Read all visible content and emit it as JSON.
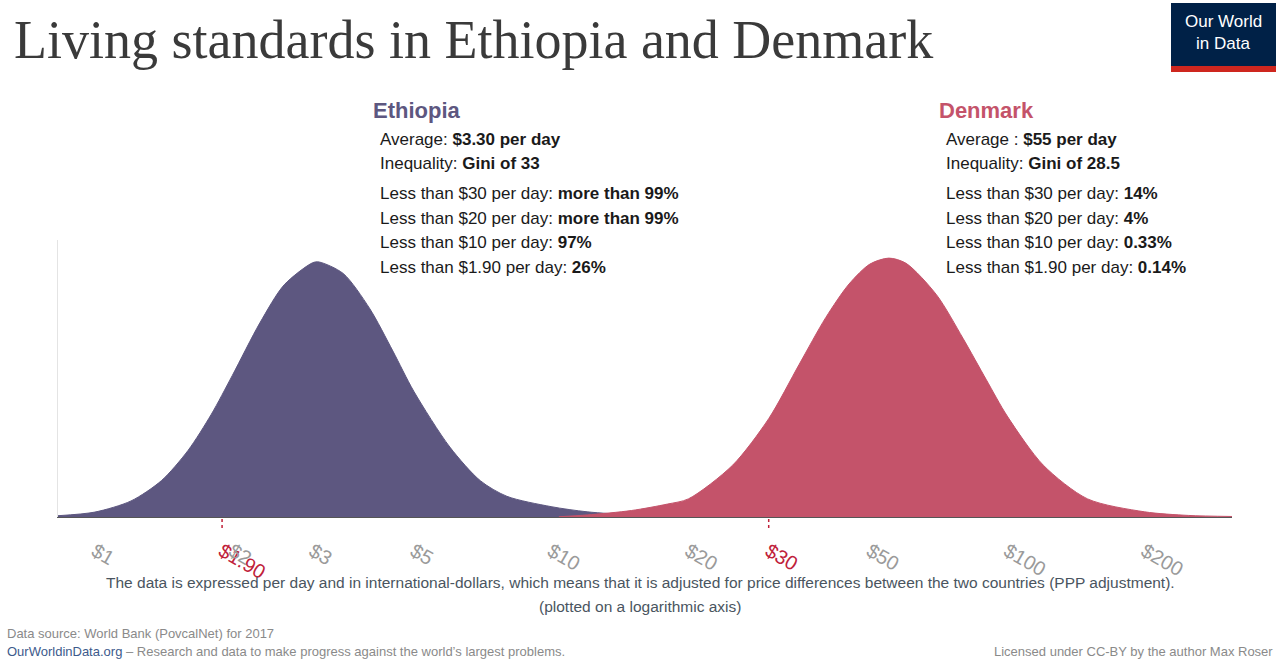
{
  "chart_data": {
    "type": "area",
    "title": "Living standards in Ethiopia and Denmark",
    "logo": [
      "Our World",
      "in Data"
    ],
    "log": "x",
    "grid": false,
    "legend": "none",
    "tick_labels": "x",
    "xlim": [
      0.83,
      311
    ],
    "xticks": [
      {
        "value": 1,
        "label": "$1"
      },
      {
        "value": 1.9,
        "label": "$1.90",
        "color": "#c0213a"
      },
      {
        "value": 2,
        "label": "$2"
      },
      {
        "value": 3,
        "label": "$3"
      },
      {
        "value": 5,
        "label": "$5"
      },
      {
        "value": 10,
        "label": "$10"
      },
      {
        "value": 20,
        "label": "$20"
      },
      {
        "value": 30,
        "label": "$30",
        "color": "#c0213a"
      },
      {
        "value": 50,
        "label": "$50"
      },
      {
        "value": 100,
        "label": "$100"
      },
      {
        "value": 200,
        "label": "$200"
      }
    ],
    "ylim": [
      0,
      107
    ],
    "series": [
      {
        "name": "Ethiopia",
        "color": "#5d5780",
        "x": [
          0.83,
          1,
          1.2,
          1.4,
          1.6,
          1.8,
          2,
          2.3,
          2.6,
          3,
          3.1,
          3.5,
          4,
          4.5,
          5,
          6,
          7,
          8,
          10,
          12,
          15,
          18,
          21
        ],
        "values": [
          0.5,
          1.9,
          6.2,
          14.1,
          25.7,
          39.7,
          54.6,
          75,
          89.7,
          98.2,
          98.5,
          94.1,
          80.6,
          64.1,
          48.6,
          27,
          14,
          8,
          4,
          2,
          0.8,
          0.3,
          0
        ],
        "summary": [
          {
            "label": "Average:",
            "value": "$3.30 per day"
          },
          {
            "label": "Inequality:",
            "value": "Gini of 33"
          },
          {
            "label": "Less than $30 per day:",
            "value": "more than 99%"
          },
          {
            "label": "Less than $20 per day:",
            "value": "more than 99%"
          },
          {
            "label": "Less than $10 per day:",
            "value": "97%"
          },
          {
            "label": "Less than $1.90 per day:",
            "value": "26%"
          }
        ]
      },
      {
        "name": "Denmark",
        "color": "#c4536a",
        "x": [
          10.4,
          12,
          15,
          18,
          20,
          25,
          30,
          35,
          40,
          45,
          50,
          55,
          60,
          70,
          80,
          90,
          100,
          120,
          150,
          200,
          250,
          311
        ],
        "values": [
          0.1,
          0.8,
          2.5,
          5,
          7,
          20,
          38,
          59,
          77,
          90,
          97.7,
          100,
          98,
          85.8,
          69,
          53,
          39,
          20,
          7,
          2,
          0.6,
          0.2
        ],
        "summary": [
          {
            "label": "Average :",
            "value": "$55 per day"
          },
          {
            "label": "Inequality:",
            "value": "Gini of 28.5"
          },
          {
            "label": "Less than $30 per day:",
            "value": "14%"
          },
          {
            "label": "Less than $20 per day:",
            "value": "4%"
          },
          {
            "label": "Less than $10 per day:",
            "value": "0.33%"
          },
          {
            "label": "Less than $1.90 per day:",
            "value": "0.14%"
          }
        ]
      }
    ],
    "caption": [
      "The data is expressed per day and in international-dollars, which means that it is adjusted for price differences between the two countries (PPP adjustment).",
      "(plotted on a logarithmic axis)"
    ],
    "source": "Data source: World Bank (PovcalNet) for 2017",
    "site": "OurWorldinData.org",
    "tagline": " – Research and data to make progress against the world’s largest problems.",
    "license": "Licensed under CC-BY by the author Max Roser"
  }
}
